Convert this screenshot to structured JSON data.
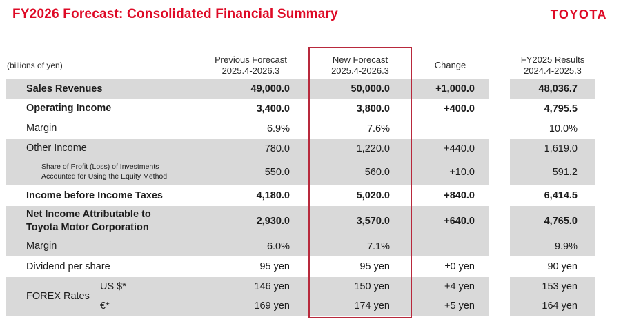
{
  "header": {
    "title": "FY2026 Forecast: Consolidated Financial Summary",
    "logo": "TOYOTA"
  },
  "colors": {
    "brand_red": "#de0a26",
    "highlight_border_red": "#b8293c",
    "row_gray": "#d9d9d9"
  },
  "table": {
    "unit_label": "(billions of yen)",
    "columns": {
      "prev": "Previous Forecast\n2025.4-2026.3",
      "new": "New Forecast\n2025.4-2026.3",
      "change": "Change",
      "fy25": "FY2025 Results\n2024.4-2025.3"
    },
    "forex_label": "FOREX Rates",
    "rows": [
      {
        "label": "Sales Revenues",
        "prev": "49,000.0",
        "new": "50,000.0",
        "change": "+1,000.0",
        "fy25": "48,036.7"
      },
      {
        "label": "Operating Income",
        "prev": "3,400.0",
        "new": "3,800.0",
        "change": "+400.0",
        "fy25": "4,795.5"
      },
      {
        "label": "Margin",
        "prev": "6.9%",
        "new": "7.6%",
        "change": "",
        "fy25": "10.0%"
      },
      {
        "label": "Other Income",
        "prev": "780.0",
        "new": "1,220.0",
        "change": "+440.0",
        "fy25": "1,619.0"
      },
      {
        "label": "Share of Profit (Loss) of Investments\nAccounted for Using the Equity Method",
        "prev": "550.0",
        "new": "560.0",
        "change": "+10.0",
        "fy25": "591.2"
      },
      {
        "label": "Income before Income Taxes",
        "prev": "4,180.0",
        "new": "5,020.0",
        "change": "+840.0",
        "fy25": "6,414.5"
      },
      {
        "label": "Net Income Attributable to\nToyota Motor Corporation",
        "prev": "2,930.0",
        "new": "3,570.0",
        "change": "+640.0",
        "fy25": "4,765.0"
      },
      {
        "label": "Margin",
        "prev": "6.0%",
        "new": "7.1%",
        "change": "",
        "fy25": "9.9%"
      },
      {
        "label": "Dividend per share",
        "prev": "95 yen",
        "new": "95 yen",
        "change": "±0 yen",
        "fy25": "90 yen"
      },
      {
        "label": "US $*",
        "prev": "146 yen",
        "new": "150 yen",
        "change": "+4 yen",
        "fy25": "153 yen"
      },
      {
        "label": "€*",
        "prev": "169 yen",
        "new": "174 yen",
        "change": "+5 yen",
        "fy25": "164 yen"
      }
    ]
  }
}
